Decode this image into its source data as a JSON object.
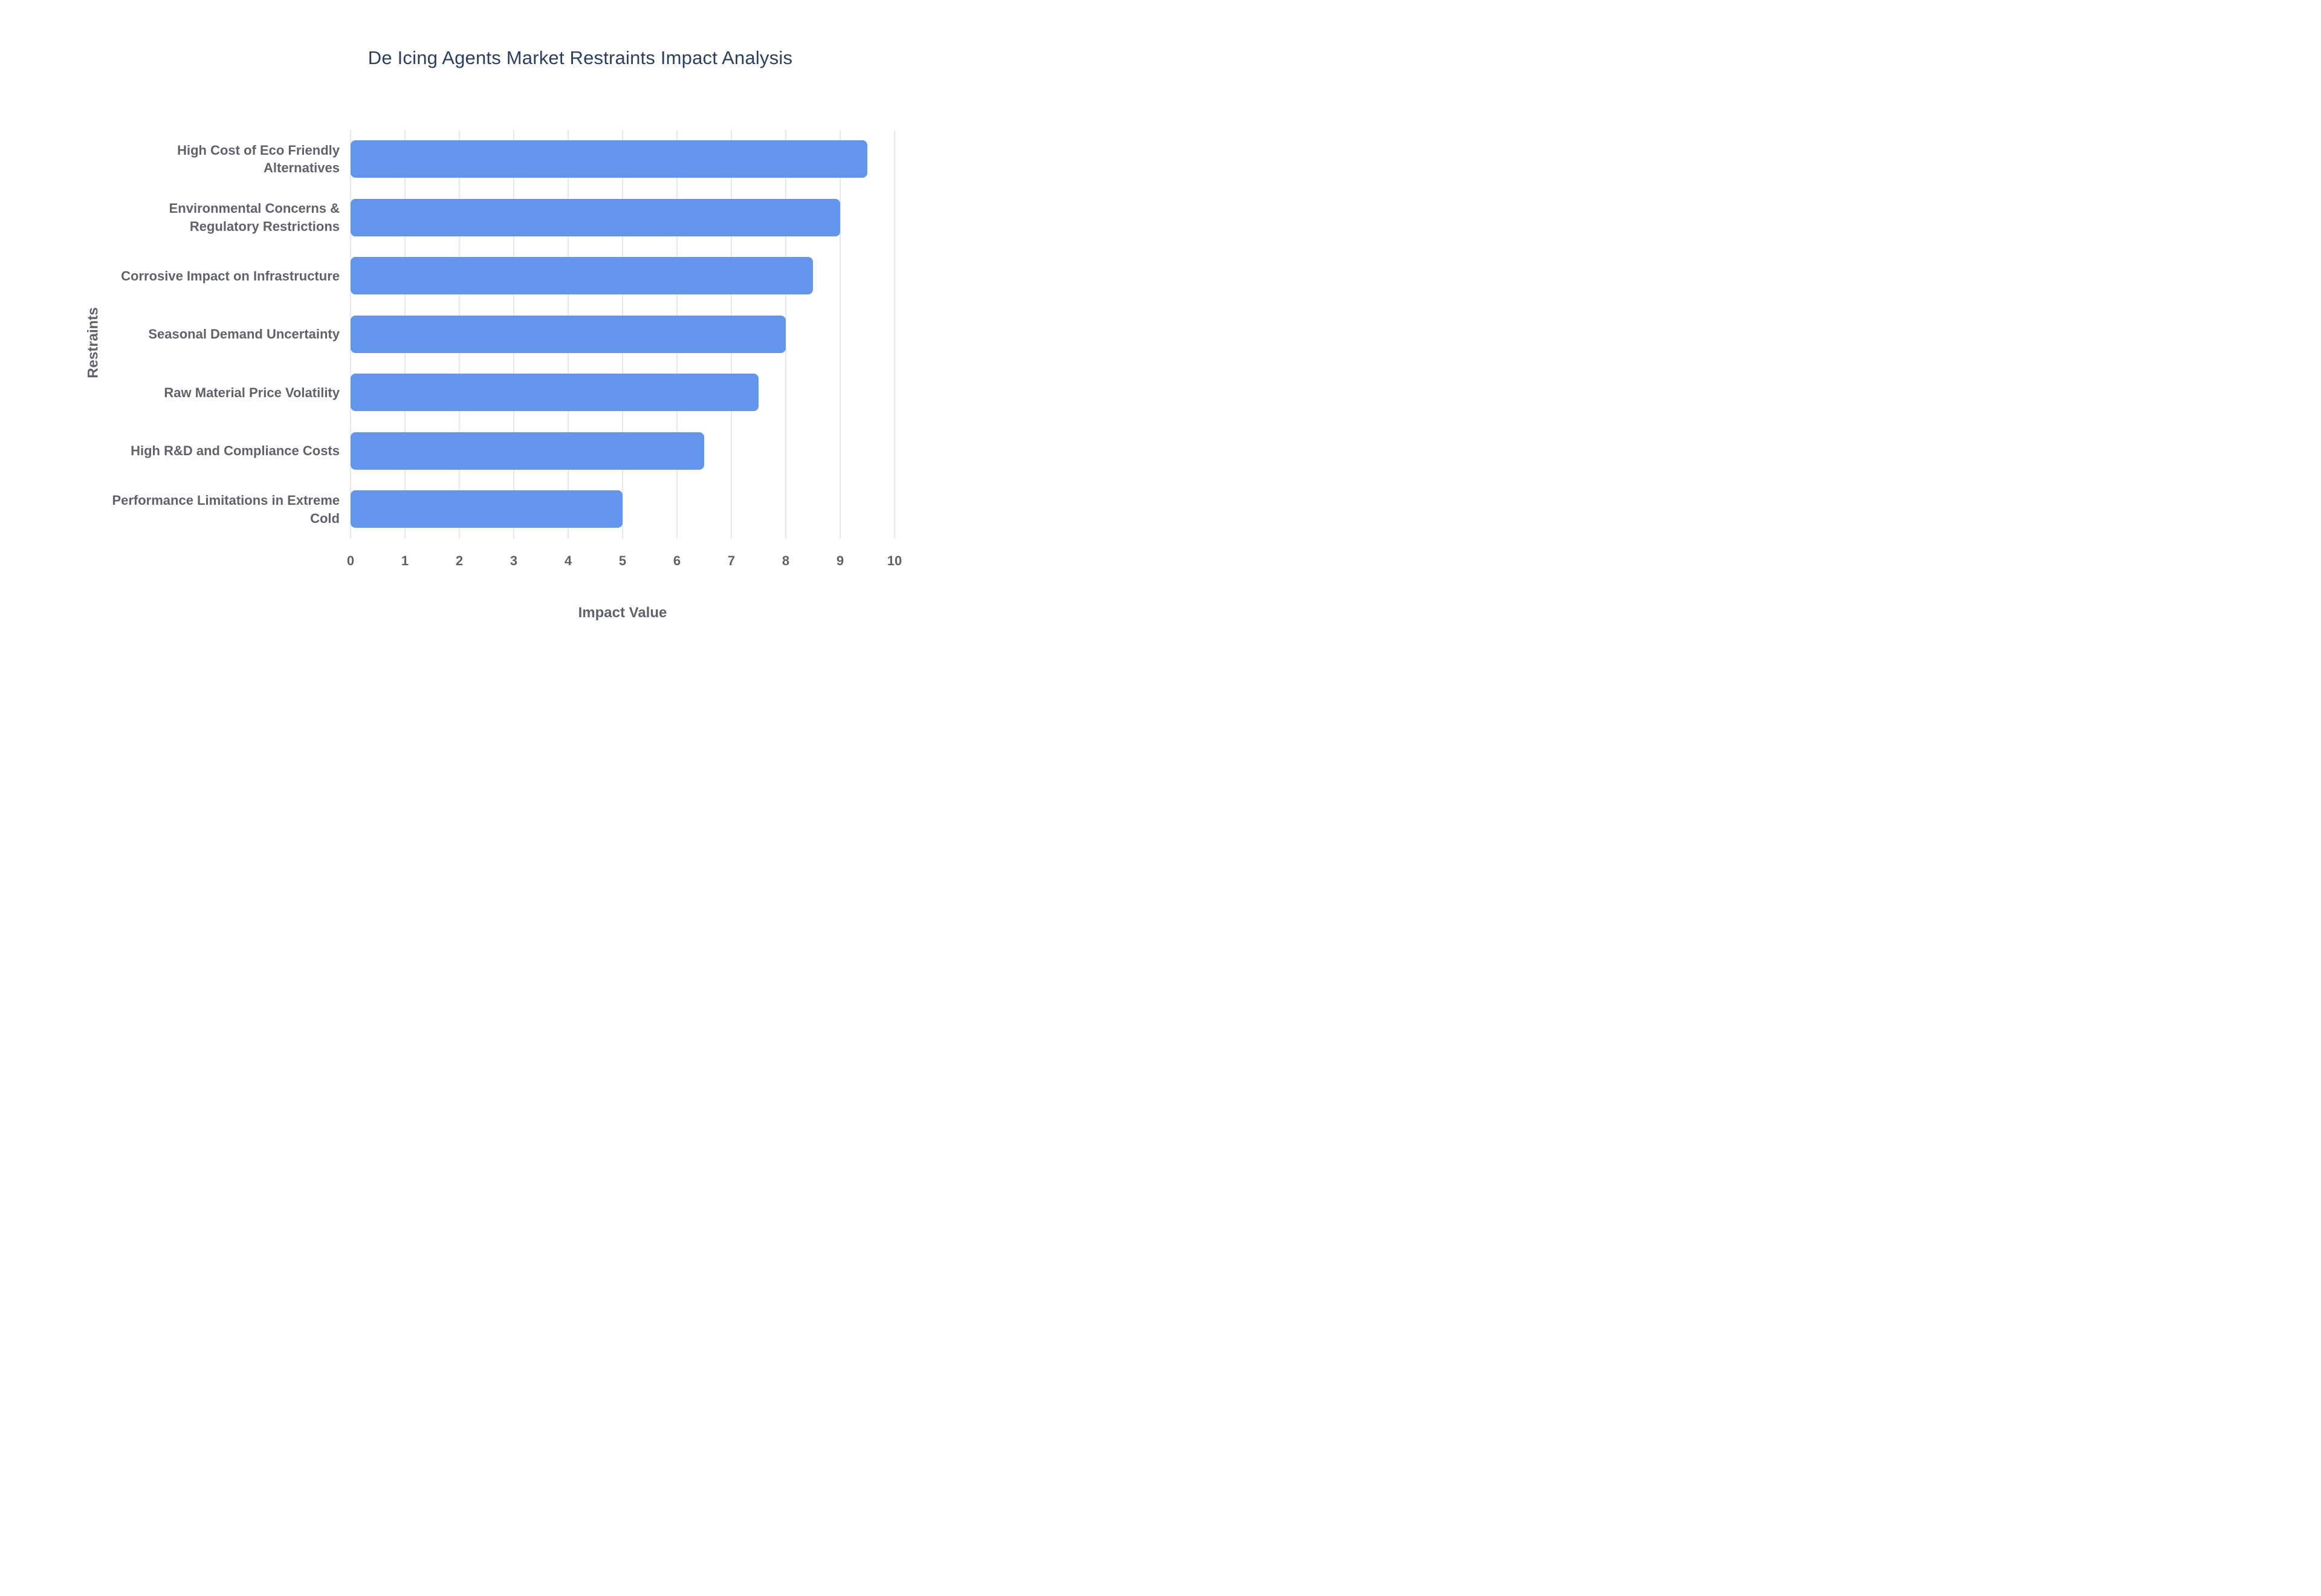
{
  "chart_data": {
    "type": "bar",
    "orientation": "horizontal",
    "title": "De Icing Agents Market Restraints Impact Analysis",
    "xlabel": "Impact Value",
    "ylabel": "Restraints",
    "categories": [
      "High Cost of Eco Friendly Alternatives",
      "Environmental Concerns & Regulatory Restrictions",
      "Corrosive Impact on Infrastructure",
      "Seasonal Demand Uncertainty",
      "Raw Material Price Volatility",
      "High R&D and Compliance Costs",
      "Performance Limitations in Extreme Cold"
    ],
    "values": [
      9.5,
      9,
      8.5,
      8,
      7.5,
      6.5,
      5
    ],
    "xlim": [
      0,
      10
    ],
    "x_ticks": [
      0,
      1,
      2,
      3,
      4,
      5,
      6,
      7,
      8,
      9,
      10
    ],
    "grid": "vertical",
    "legend": "none",
    "colors": {
      "bar": "#6495ED",
      "title_text": "#2a3f5f",
      "axis_text": "#5f6368",
      "gridline": "#e6e8eb",
      "background": "#ffffff"
    }
  }
}
